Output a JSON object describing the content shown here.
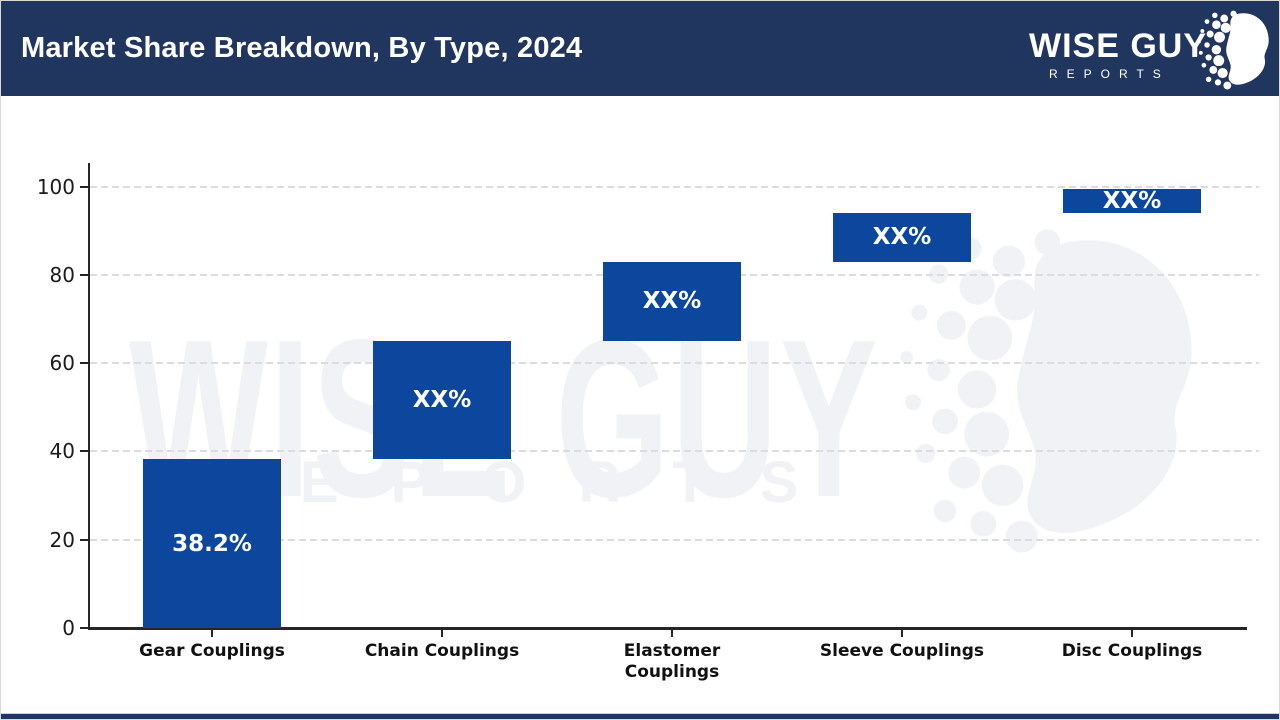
{
  "header": {
    "title": "Market Share Breakdown, By Type, 2024",
    "logo": {
      "brand_top": "WISE GUY",
      "brand_bottom": "REPORTS"
    }
  },
  "watermark": {
    "brand_top": "WISE GUY",
    "brand_bottom": "REPORTS"
  },
  "chart_data": {
    "type": "bar",
    "subtype": "waterfall-floating-bars",
    "title": "Market Share Breakdown, By Type, 2024",
    "categories": [
      "Gear Couplings",
      "Chain Couplings",
      "Elastomer Couplings",
      "Sleeve Couplings",
      "Disc Couplings"
    ],
    "segments": [
      {
        "category": "Gear Couplings",
        "start": 0,
        "end": 38.2,
        "label": "38.2%"
      },
      {
        "category": "Chain Couplings",
        "start": 38.2,
        "end": 65,
        "label": "XX%"
      },
      {
        "category": "Elastomer Couplings",
        "start": 65,
        "end": 83,
        "label": "XX%"
      },
      {
        "category": "Sleeve Couplings",
        "start": 83,
        "end": 94,
        "label": "XX%"
      },
      {
        "category": "Disc Couplings",
        "start": 94,
        "end": 99.5,
        "label": "XX%"
      }
    ],
    "yticks": [
      0,
      20,
      40,
      60,
      80,
      100
    ],
    "ylim": [
      0,
      105
    ],
    "xlabel": "",
    "ylabel": "",
    "grid": "horizontal-dashed",
    "legend": "none",
    "bar_color": "#0d479d"
  },
  "colors": {
    "header_bg": "#21365f",
    "footer_bg": "#21365f",
    "bar": "#0d479d",
    "grid": "#dcdcdc",
    "watermark": "#f1f2f5",
    "title_text": "#ffffff"
  }
}
